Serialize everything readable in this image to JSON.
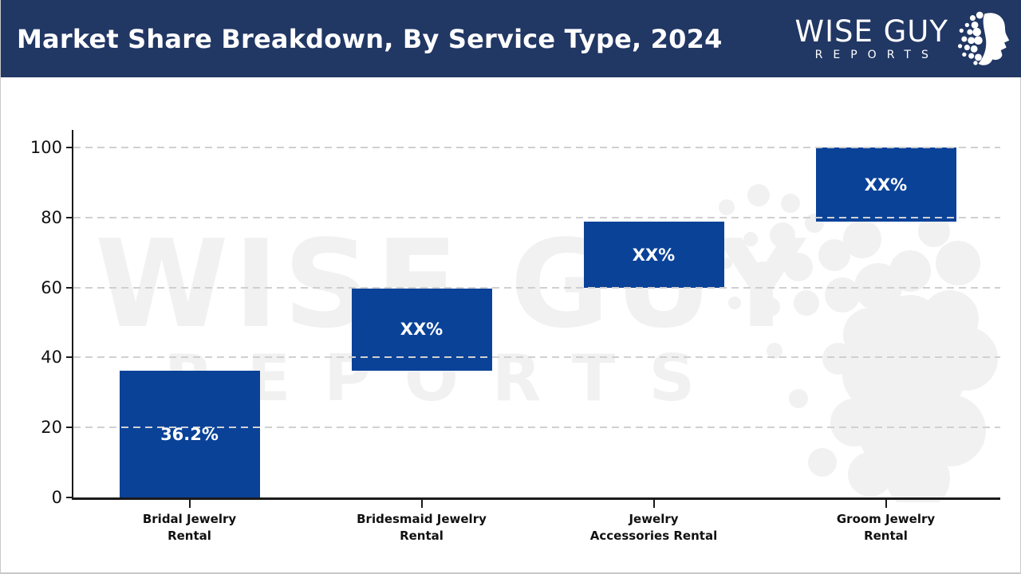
{
  "header": {
    "title": "Market Share Breakdown, By Service Type, 2024",
    "logo": {
      "line1": "WISE GUY",
      "line2": "REPORTS"
    }
  },
  "watermark": {
    "line1": "WISE GUY",
    "line2": "REPORTS"
  },
  "colors": {
    "header_bg": "#213764",
    "bar": "#0a4298",
    "bar_label": "#ffffff",
    "grid": "#d0d0d0",
    "axis": "#1a1a1a",
    "watermark": "#f1f1f1"
  },
  "chart_data": {
    "type": "bar",
    "subtype": "waterfall",
    "title": "Market Share Breakdown, By Service Type, 2024",
    "categories": [
      "Bridal Jewelry\nRental",
      "Bridesmaid Jewelry\nRental",
      "Jewelry\nAccessories Rental",
      "Groom Jewelry\nRental"
    ],
    "segments": [
      {
        "start": 0,
        "end": 36.2,
        "label": "36.2%"
      },
      {
        "start": 36.2,
        "end": 59.8,
        "label": "XX%"
      },
      {
        "start": 59.8,
        "end": 78.8,
        "label": "XX%"
      },
      {
        "start": 78.8,
        "end": 100,
        "label": "XX%"
      }
    ],
    "ylim": [
      0,
      100
    ],
    "yticks": [
      0,
      20,
      40,
      60,
      80,
      100
    ],
    "grid": true,
    "legend_position": "none"
  }
}
